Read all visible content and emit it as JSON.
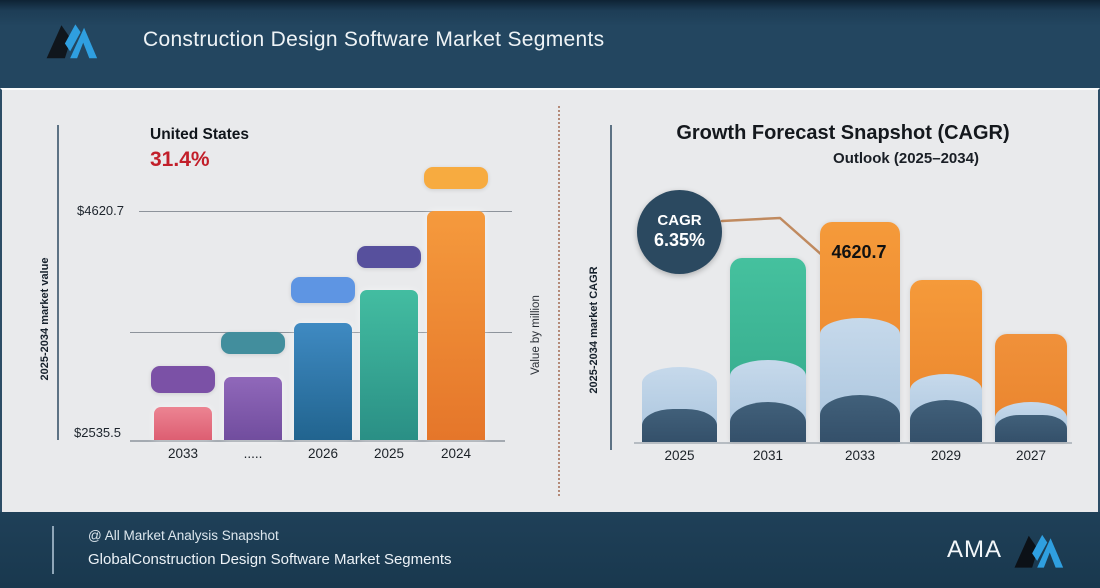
{
  "header": {
    "title": "Construction Design Software Market Segments"
  },
  "footer": {
    "line1": "@ All Market Analysis Snapshot",
    "line2": "GlobalConstruction Design Software Market Segments",
    "brand": "AMA"
  },
  "colors": {
    "header_bg": "#234660",
    "footer_bg": "#1f4058",
    "content_bg": "#e9eaec",
    "accent_red": "#c21f2a",
    "badge_navy": "#2b4960",
    "connector": "#c08a5f"
  },
  "chart_data": [
    {
      "type": "bar",
      "title": "United States",
      "highlight": "31.4%",
      "ylabel": "2025-2034 market value",
      "ylabel_right": "Value by million",
      "ymin": 2535.5,
      "ymin_label": "$2535.5",
      "gridline_value": 4620.7,
      "gridline_label": "$4620.7",
      "unlabeled_gridline_value": 3520,
      "categories": [
        "2033",
        ".....",
        "2026",
        "2025",
        "2024"
      ],
      "bars": [
        {
          "label": "2033",
          "value": 2840,
          "colors": [
            "#ec8492",
            "#dd5e72"
          ],
          "cap": {
            "from": 2960,
            "to": 3210,
            "color": "#7b51a6"
          }
        },
        {
          "label": ".....",
          "value": 3110,
          "colors": [
            "#9068ba",
            "#714d9e"
          ],
          "cap": {
            "from": 3320,
            "to": 3520,
            "color": "#428e9d"
          }
        },
        {
          "label": "2026",
          "value": 3600,
          "colors": [
            "#3f8ac2",
            "#21648f"
          ],
          "cap": {
            "from": 3780,
            "to": 4020,
            "color": "#5e95e3"
          }
        },
        {
          "label": "2025",
          "value": 3900,
          "colors": [
            "#43bda1",
            "#2a8f85"
          ],
          "cap": {
            "from": 4100,
            "to": 4300,
            "color": "#57509d"
          }
        },
        {
          "label": "2024",
          "value": 4620.7,
          "colors": [
            "#f59a3d",
            "#e5762a"
          ],
          "cap": {
            "from": 4820,
            "to": 5020,
            "color": "#f7ab40"
          }
        }
      ]
    },
    {
      "type": "stacked_bar",
      "title": "Growth Forecast Snapshot (CAGR)",
      "subtitle": "Outlook (2025–2034)",
      "ylabel": "2025-2034 market CAGR",
      "badge": {
        "label": "CAGR",
        "value": "6.35%"
      },
      "data_label": {
        "category": "2033",
        "text": "4620.7"
      },
      "categories": [
        "2025",
        "2031",
        "2033",
        "2029",
        "2027"
      ],
      "series": [
        {
          "name": "base",
          "colors": [
            "#41607a",
            "#34506a"
          ],
          "values": [
            690,
            840,
            990,
            880,
            570
          ]
        },
        {
          "name": "mid",
          "colors": [
            "#c6d9eb",
            "#a9c4dd"
          ],
          "values": [
            880,
            880,
            1620,
            550,
            270
          ]
        },
        {
          "name": "top",
          "values": [
            0,
            2140,
            2010,
            1970,
            1430
          ],
          "colors": [
            null,
            [
              "#45c19e",
              "#33a689"
            ],
            [
              "#f59a3a",
              "#e9832c"
            ],
            [
              "#f59a3a",
              "#e9832c"
            ],
            [
              "#f0913a",
              "#e9832c"
            ]
          ]
        }
      ],
      "totals": [
        1570,
        3860,
        4620.7,
        3400,
        2270
      ]
    }
  ]
}
